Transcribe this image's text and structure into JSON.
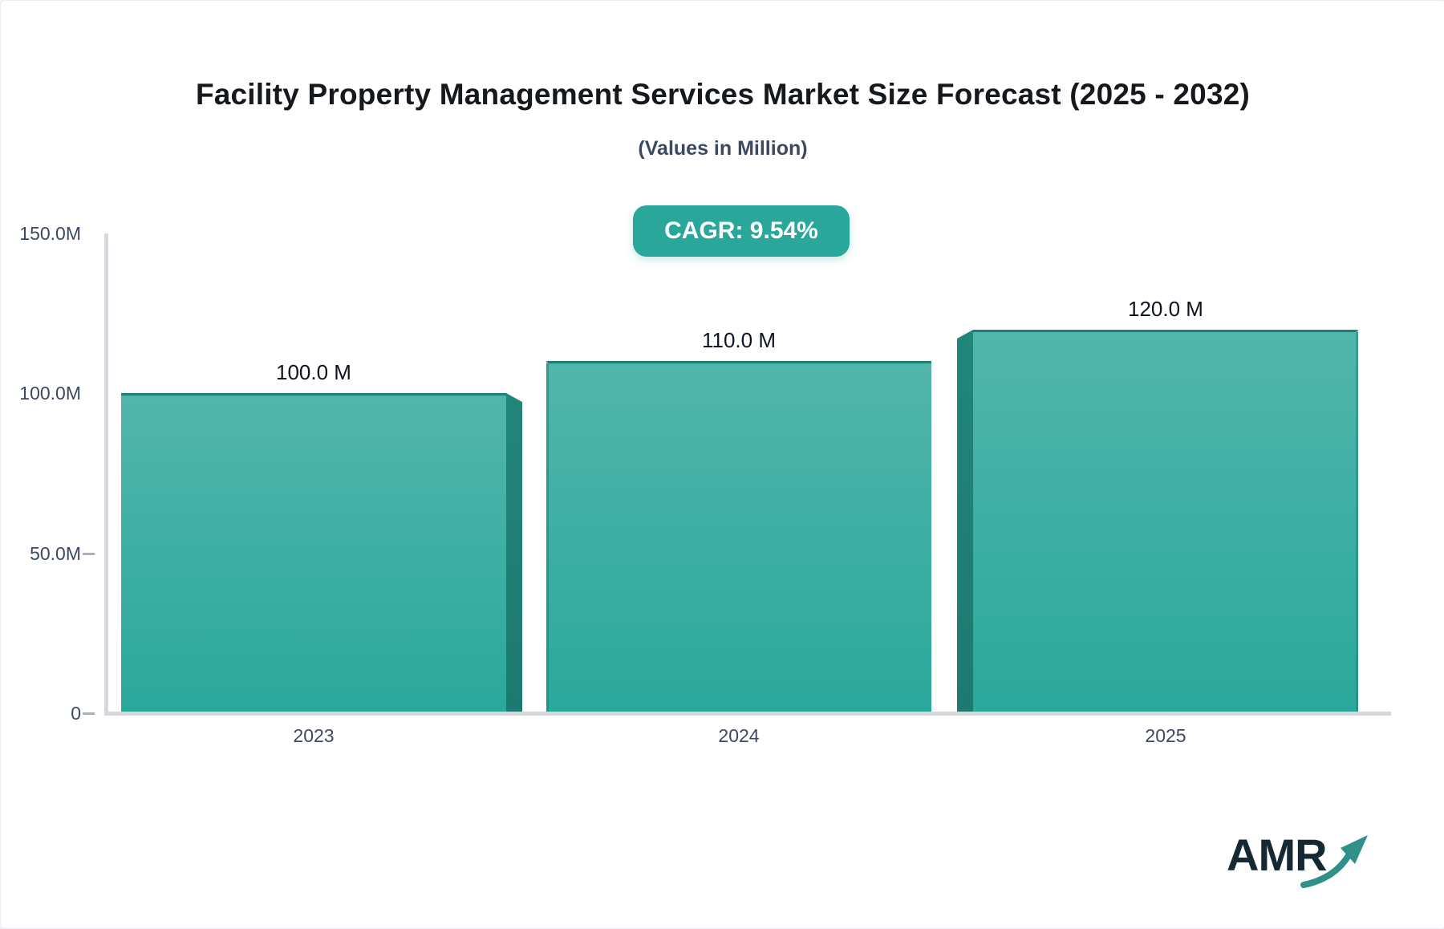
{
  "header": {
    "title": "Facility Property Management Services Market Size Forecast (2025 - 2032)",
    "subtitle": "(Values in Million)",
    "cagr_label": "CAGR: 9.54%"
  },
  "chart_data": {
    "type": "bar",
    "title": "Facility Property Management Services Market Size Forecast (2025 - 2032)",
    "subtitle": "(Values in Million)",
    "unit": "Million",
    "categories": [
      "2023",
      "2024",
      "2025"
    ],
    "values": [
      100.0,
      110.0,
      120.0
    ],
    "value_labels": [
      "100.0 M",
      "110.0 M",
      "120.0 M"
    ],
    "cagr": "9.54%",
    "ylim": [
      0,
      150
    ],
    "ytick_values": [
      150,
      100,
      50,
      0
    ],
    "ytick_labels": [
      "150.0M",
      "100.0M",
      "50.0M",
      "0"
    ],
    "grid": false,
    "legend": "none"
  },
  "logo": {
    "text": "AMR"
  },
  "colors": {
    "bar_top": "#52b5ab",
    "bar_bottom": "#2aa89b",
    "bar_border": "#1b8076",
    "bar_side": "#21857a",
    "badge_bg": "#2aa79b",
    "axis": "#d6d8dd",
    "title_text": "#15181d",
    "label_text": "#3c4961",
    "value_text": "#0d1320",
    "logo_text": "#162832",
    "logo_arrow": "#2f908a"
  }
}
